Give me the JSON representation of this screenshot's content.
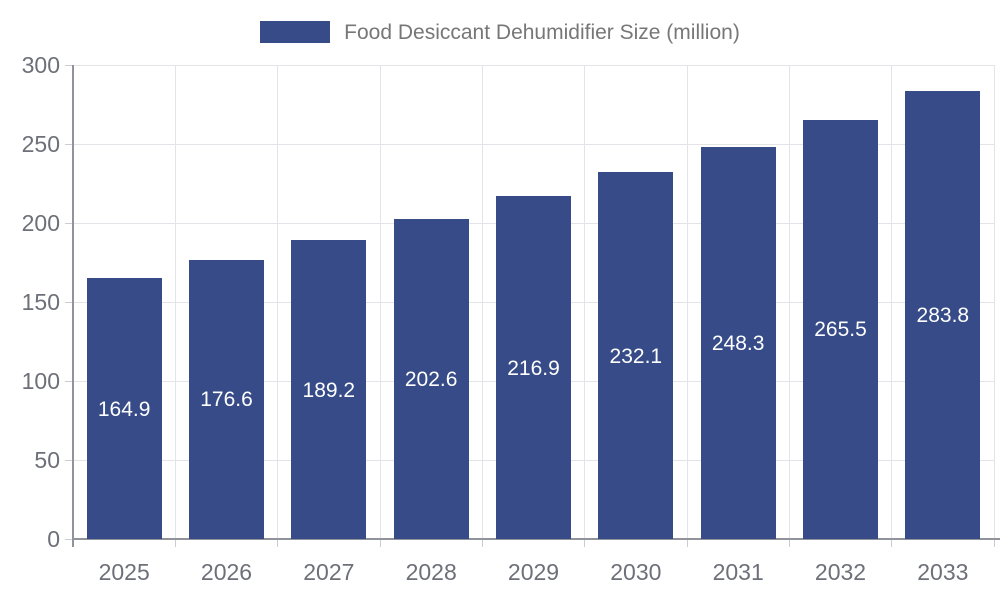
{
  "chart_data": {
    "type": "bar",
    "title": "Food Desiccant Dehumidifier Size (million)",
    "categories": [
      "2025",
      "2026",
      "2027",
      "2028",
      "2029",
      "2030",
      "2031",
      "2032",
      "2033"
    ],
    "values": [
      164.9,
      176.6,
      189.2,
      202.6,
      216.9,
      232.1,
      248.3,
      265.5,
      283.8
    ],
    "xlabel": "",
    "ylabel": "",
    "ylim": [
      0,
      300
    ],
    "yticks": [
      0,
      50,
      100,
      150,
      200,
      250,
      300
    ],
    "grid": true,
    "legend_position": "top",
    "value_labels": "inside-center"
  },
  "legend": {
    "label": "Food Desiccant Dehumidifier Size (million)"
  },
  "colors": {
    "bar": "#364B87",
    "value_label": "#ffffff",
    "axis_label": "#6E7079",
    "legend_text": "#777777",
    "grid_line": "#E4E4E8",
    "axis_line": "#90939A",
    "tick": "#CCCCD2",
    "background": "#ffffff"
  }
}
